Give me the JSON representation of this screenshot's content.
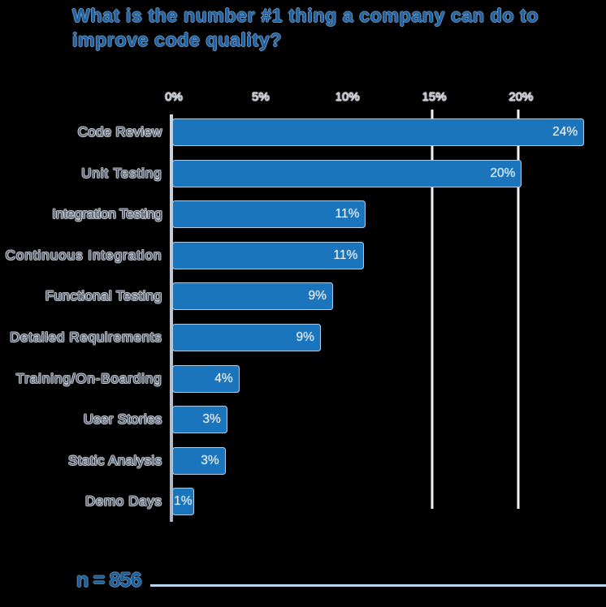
{
  "title": {
    "text": "What is the number #1 thing a company can do to\nimprove code quality?"
  },
  "footnote": {
    "text": "n = 856"
  },
  "chart_data": {
    "type": "bar",
    "orientation": "horizontal",
    "title": "What is the number #1 thing a company can do to improve code quality?",
    "categories": [
      "Code Review",
      "Unit Testing",
      "Integration Testing",
      "Continuous Integration",
      "Functional Testing",
      "Detailed Requirements",
      "Training/On-Boarding",
      "User Stories",
      "Static Analysis",
      "Demo Days"
    ],
    "values": [
      24,
      20,
      11,
      11,
      9,
      9,
      4,
      3,
      3,
      1
    ],
    "value_labels": [
      "24%",
      "20%",
      "11%",
      "11%",
      "9%",
      "9%",
      "4%",
      "3%",
      "3%",
      "1%"
    ],
    "values_precise": [
      23.8,
      20.2,
      11.2,
      11.1,
      9.3,
      8.6,
      3.9,
      3.2,
      3.1,
      1.3
    ],
    "x_ticks": [
      "0%",
      "5%",
      "10%",
      "15%",
      "20%"
    ],
    "x_tick_values": [
      0,
      5,
      10,
      15,
      20
    ],
    "gridline_values": [
      15,
      20
    ],
    "xlim": [
      0,
      25
    ],
    "grid": "vertical",
    "legend": "none",
    "bar_color": "#1b75bc",
    "title_color": "#2c76b6",
    "annotation": "n = 856"
  }
}
